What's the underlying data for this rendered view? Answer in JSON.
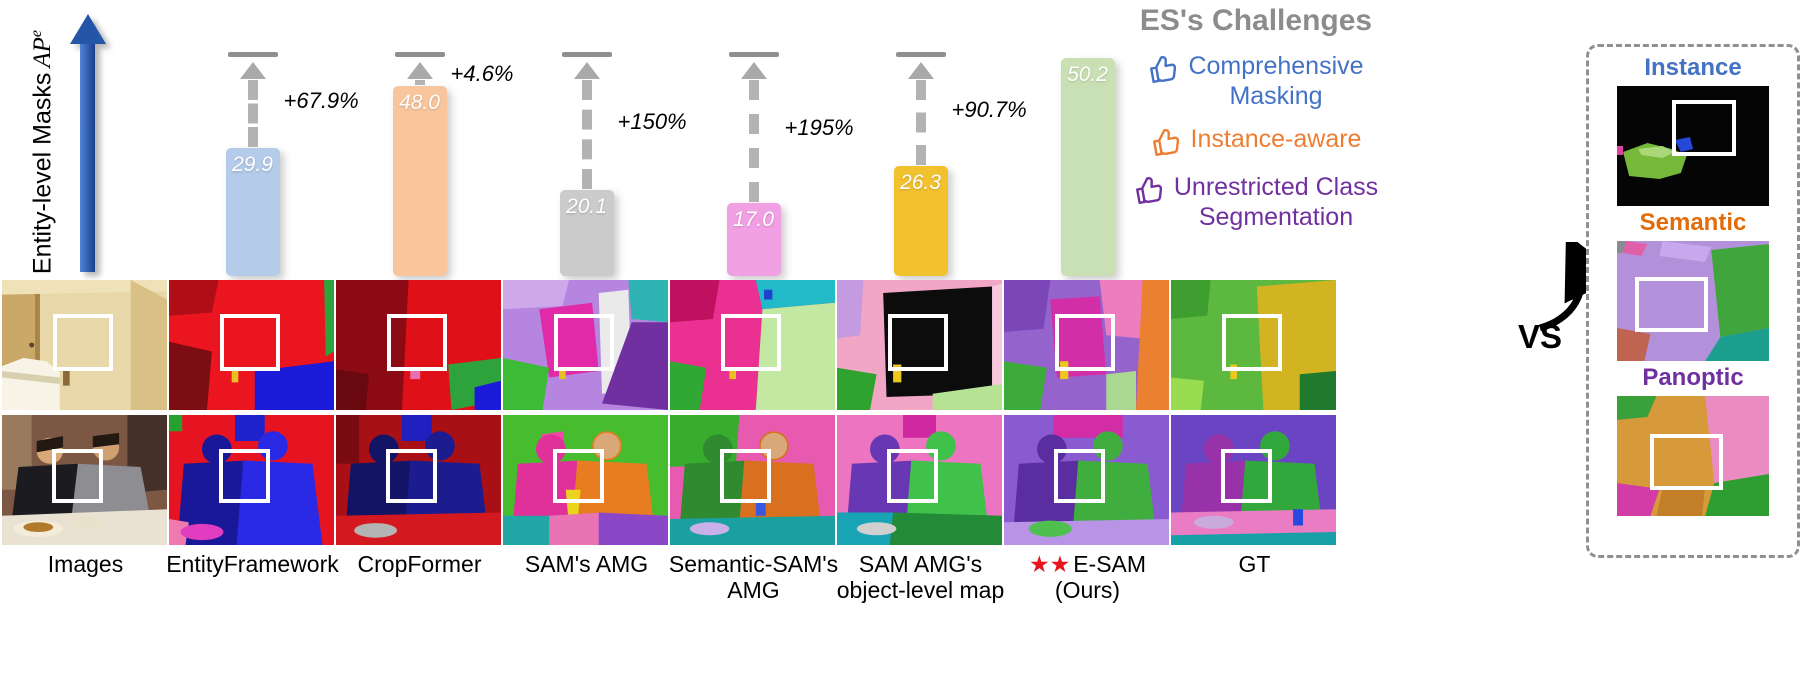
{
  "chart": {
    "axis_label_prefix": "Entity-level Masks",
    "axis_label_metric": "AP",
    "axis_label_sup": "e"
  },
  "chart_data": {
    "type": "bar",
    "title": "",
    "ylabel": "Entity-level Masks AP^e",
    "ylim": [
      0,
      52
    ],
    "categories": [
      "EntityFramework",
      "CropFormer",
      "SAM's AMG",
      "Semantic-SAM's AMG",
      "SAM AMG's object-level map",
      "E-SAM (Ours)"
    ],
    "values": [
      29.9,
      48.0,
      20.1,
      17.0,
      26.3,
      50.2
    ],
    "improvements": [
      "+67.9%",
      "+4.6%",
      "+150%",
      "+195%",
      "+90.7%",
      ""
    ],
    "bar_colors": [
      "#b5cbea",
      "#f9c59c",
      "#cbcbcb",
      "#f2a0e4",
      "#f2c12e",
      "#c9e0b4"
    ],
    "reference_level": 50.2,
    "legend_position": "none",
    "grid": false
  },
  "grid": {
    "column_labels": [
      [
        "Images"
      ],
      [
        "EntityFramework"
      ],
      [
        "CropFormer"
      ],
      [
        "SAM's AMG"
      ],
      [
        "Semantic-SAM's",
        "AMG"
      ],
      [
        "SAM AMG's",
        "object-level map"
      ],
      [
        "E-SAM (Ours)"
      ],
      [
        "GT"
      ]
    ],
    "esam_column_index": 6,
    "esam_stars": "★★"
  },
  "challenges": {
    "title": "ES's Challenges",
    "items": [
      {
        "label": "Comprehensive Masking",
        "lines": [
          "Comprehensive",
          "Masking"
        ],
        "color": "#4472c4"
      },
      {
        "label": "Instance-aware",
        "lines": [
          "Instance-aware"
        ],
        "color": "#ed7d31"
      },
      {
        "label": "Unrestricted Class Segmentation",
        "lines": [
          "Unrestricted Class",
          "Segmentation"
        ],
        "color": "#7030a0"
      }
    ]
  },
  "vs_label": "VS",
  "right_panel": {
    "items": [
      {
        "label": "Instance",
        "color": "#4472c4"
      },
      {
        "label": "Semantic",
        "color": "#e36c0a"
      },
      {
        "label": "Panoptic",
        "color": "#7030a0"
      }
    ]
  }
}
